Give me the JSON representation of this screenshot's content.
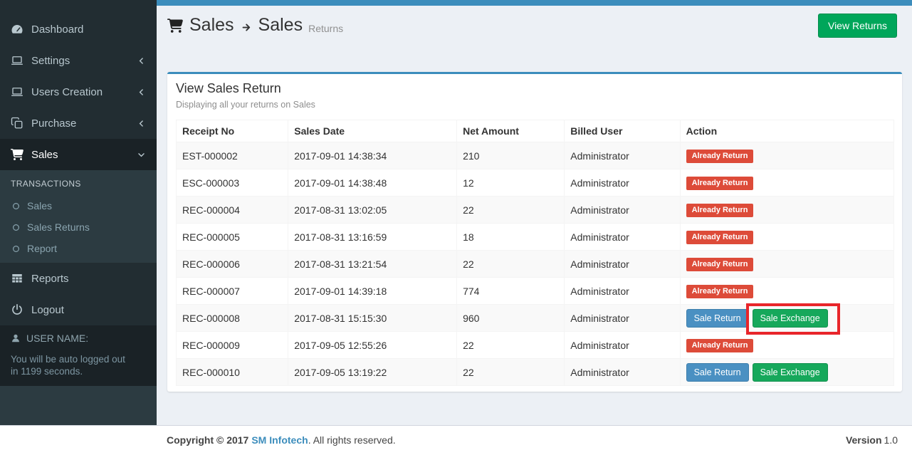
{
  "colors": {
    "accent_blue": "#3c8dbc",
    "sidebar_bg": "#222d32",
    "sidebar_dark": "#1a2226",
    "submenu_bg": "#2c3b41",
    "green_button": "#00a65a",
    "exchange_green": "#16a85b",
    "return_blue": "#4a90c2",
    "danger_red": "#dd4b39",
    "highlight_red": "#e8252a",
    "content_bg": "#ecf0f5"
  },
  "sidebar": {
    "items": [
      {
        "label": "Dashboard",
        "icon": "dashboard-icon",
        "chevron": "",
        "active": false
      },
      {
        "label": "Settings",
        "icon": "laptop-icon",
        "chevron": "left",
        "active": false
      },
      {
        "label": "Users Creation",
        "icon": "laptop-icon",
        "chevron": "left",
        "active": false
      },
      {
        "label": "Purchase",
        "icon": "copy-icon",
        "chevron": "left",
        "active": false
      },
      {
        "label": "Sales",
        "icon": "cart-icon",
        "chevron": "down",
        "active": true
      }
    ],
    "section_header": "TRANSACTIONS",
    "submenu": [
      {
        "label": "Sales",
        "icon": "circle-icon"
      },
      {
        "label": "Sales Returns",
        "icon": "circle-icon"
      },
      {
        "label": "Report",
        "icon": "circle-icon"
      }
    ],
    "items_after": [
      {
        "label": "Reports",
        "icon": "table-icon",
        "chevron": "",
        "active": false
      },
      {
        "label": "Logout",
        "icon": "power-icon",
        "chevron": "",
        "active": false
      }
    ],
    "user_panel": {
      "label": "USER NAME:",
      "icon": "user-icon",
      "message": "You will be auto logged out in 1199 seconds."
    }
  },
  "header": {
    "icon": "cart-icon",
    "title_primary": "Sales",
    "title_secondary": "Sales",
    "title_sub": "Returns",
    "button_label": "View Returns"
  },
  "panel": {
    "title": "View Sales Return",
    "subtitle": "Displaying all your returns on Sales"
  },
  "table": {
    "columns": [
      "Receipt No",
      "Sales Date",
      "Net Amount",
      "Billed User",
      "Action"
    ],
    "action_labels": {
      "already_return": "Already Return",
      "sale_return": "Sale Return",
      "sale_exchange": "Sale Exchange"
    },
    "rows": [
      {
        "receipt": "EST-000002",
        "date": "2017-09-01 14:38:34",
        "amount": "210",
        "user": "Administrator",
        "actions": [
          "already_return"
        ],
        "highlight": ""
      },
      {
        "receipt": "ESC-000003",
        "date": "2017-09-01 14:38:48",
        "amount": "12",
        "user": "Administrator",
        "actions": [
          "already_return"
        ],
        "highlight": ""
      },
      {
        "receipt": "REC-000004",
        "date": "2017-08-31 13:02:05",
        "amount": "22",
        "user": "Administrator",
        "actions": [
          "already_return"
        ],
        "highlight": ""
      },
      {
        "receipt": "REC-000005",
        "date": "2017-08-31 13:16:59",
        "amount": "18",
        "user": "Administrator",
        "actions": [
          "already_return"
        ],
        "highlight": ""
      },
      {
        "receipt": "REC-000006",
        "date": "2017-08-31 13:21:54",
        "amount": "22",
        "user": "Administrator",
        "actions": [
          "already_return"
        ],
        "highlight": ""
      },
      {
        "receipt": "REC-000007",
        "date": "2017-09-01 14:39:18",
        "amount": "774",
        "user": "Administrator",
        "actions": [
          "already_return"
        ],
        "highlight": ""
      },
      {
        "receipt": "REC-000008",
        "date": "2017-08-31 15:15:30",
        "amount": "960",
        "user": "Administrator",
        "actions": [
          "sale_return",
          "sale_exchange"
        ],
        "highlight": "sale_exchange"
      },
      {
        "receipt": "REC-000009",
        "date": "2017-09-05 12:55:26",
        "amount": "22",
        "user": "Administrator",
        "actions": [
          "already_return"
        ],
        "highlight": ""
      },
      {
        "receipt": "REC-000010",
        "date": "2017-09-05 13:19:22",
        "amount": "22",
        "user": "Administrator",
        "actions": [
          "sale_return",
          "sale_exchange"
        ],
        "highlight": ""
      }
    ]
  },
  "footer": {
    "copyright_prefix": "Copyright © 2017",
    "company": "SM Infotech",
    "copyright_suffix": ". All rights reserved.",
    "version_label": "Version",
    "version_value": "1.0"
  }
}
